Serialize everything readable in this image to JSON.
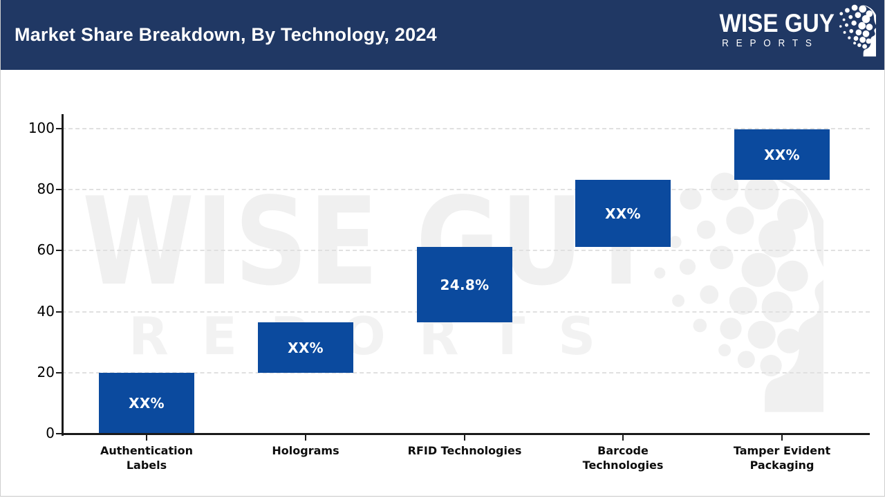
{
  "header": {
    "title": "Market Share Breakdown, By Technology, 2024",
    "background_color": "#203864",
    "logo": {
      "line1": "WISE GUY",
      "line2": "REPORTS"
    }
  },
  "watermark": {
    "line1": "WISE GUY",
    "line2": "REPORTS"
  },
  "chart_data": {
    "type": "bar",
    "subtype": "waterfall",
    "title": "Market Share Breakdown, By Technology, 2024",
    "xlabel": "",
    "ylabel": "",
    "ylim": [
      0,
      100
    ],
    "yticks": [
      0,
      20,
      40,
      60,
      80,
      100
    ],
    "grid": "horizontal dashed",
    "legend": "none",
    "bar_color": "#0b4a9e",
    "bar_label_color": "#ffffff",
    "categories": [
      "Authentication Labels",
      "Holograms",
      "RFID Technologies",
      "Barcode Technologies",
      "Tamper Evident Packaging"
    ],
    "category_lines": [
      [
        "Authentication",
        "Labels"
      ],
      [
        "Holograms"
      ],
      [
        "RFID Technologies"
      ],
      [
        "Barcode",
        "Technologies"
      ],
      [
        "Tamper Evident",
        "Packaging"
      ]
    ],
    "segments": [
      {
        "category": "Authentication Labels",
        "start": 0,
        "end": 20,
        "height": 20,
        "label": "XX%"
      },
      {
        "category": "Holograms",
        "start": 20,
        "end": 36.4,
        "height": 16.4,
        "label": "XX%"
      },
      {
        "category": "RFID Technologies",
        "start": 36.4,
        "end": 61.2,
        "height": 24.8,
        "label": "24.8%"
      },
      {
        "category": "Barcode Technologies",
        "start": 61.2,
        "end": 83.2,
        "height": 22,
        "label": "XX%"
      },
      {
        "category": "Tamper Evident Packaging",
        "start": 83.2,
        "end": 99.7,
        "height": 16.5,
        "label": "XX%"
      }
    ]
  }
}
